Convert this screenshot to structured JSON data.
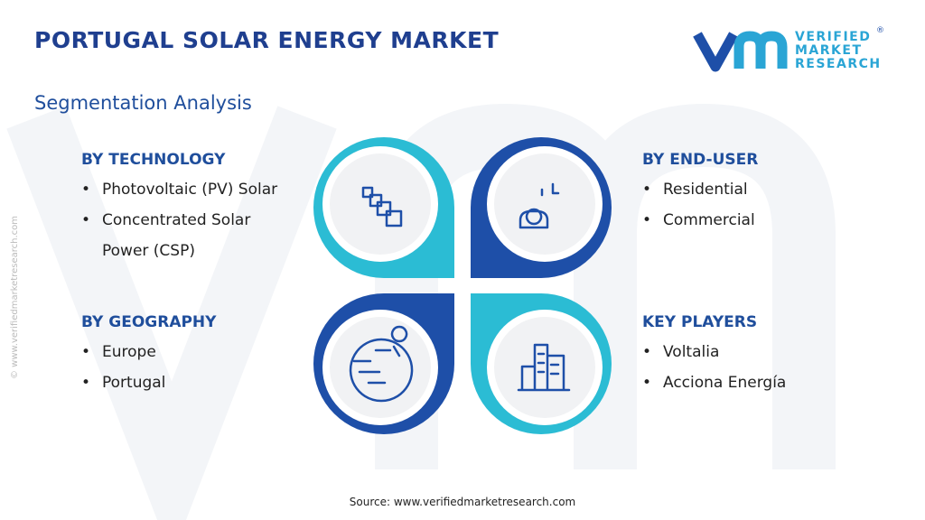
{
  "header": {
    "title": "PORTUGAL SOLAR ENERGY MARKET",
    "subtitle": "Segmentation Analysis"
  },
  "logo": {
    "mark": "®",
    "lines": [
      "VERIFIED",
      "MARKET",
      "RESEARCH"
    ]
  },
  "segments": [
    {
      "title": "BY TECHNOLOGY",
      "items": [
        "Photovoltaic (PV) Solar",
        "Concentrated Solar Power (CSP)"
      ]
    },
    {
      "title": "BY END-USER",
      "items": [
        "Residential",
        "Commercial"
      ]
    },
    {
      "title": "BY GEOGRAPHY",
      "items": [
        "Europe",
        "Portugal"
      ]
    },
    {
      "title": "KEY PLAYERS",
      "items": [
        "Voltalia",
        "Acciona Energía"
      ]
    }
  ],
  "watermark": "© www.verifiedmarketresearch.com",
  "source": "Source: www.verifiedmarketresearch.com"
}
